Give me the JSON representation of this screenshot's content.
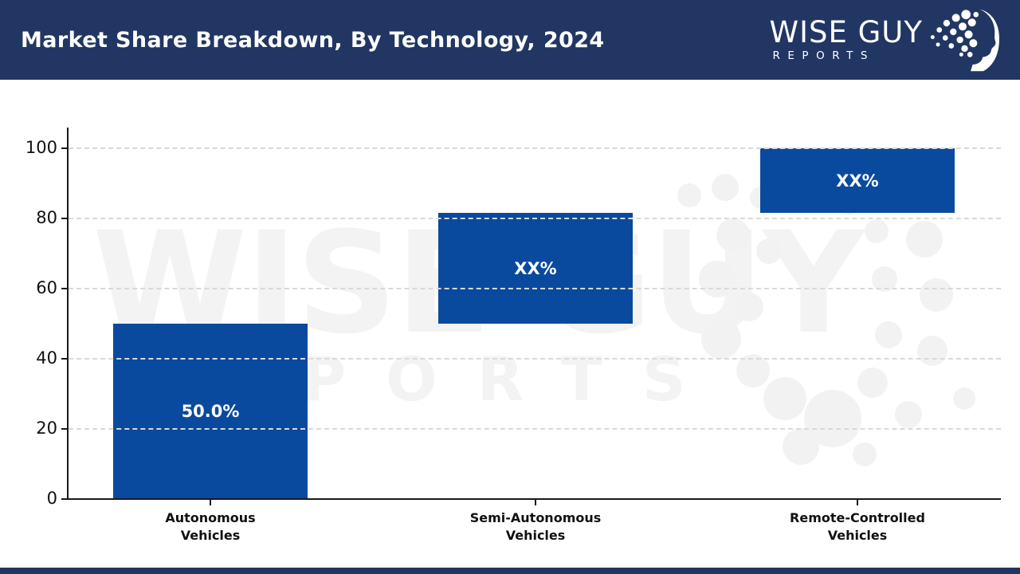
{
  "header": {
    "title": "Market Share Breakdown, By Technology, 2024",
    "logo": {
      "line1": "WISE GUY",
      "line2": "REPORTS"
    },
    "bg_color": "#213663"
  },
  "watermark": {
    "line1": "WISE GUY",
    "line2": "REPORTS"
  },
  "chart_data": {
    "type": "bar",
    "subtype": "floating-waterfall",
    "title": "Market Share Breakdown, By Technology, 2024",
    "categories": [
      "Autonomous\nVehicles",
      "Semi-Autonomous\nVehicles",
      "Remote-Controlled\nVehicles"
    ],
    "bars": [
      {
        "category": "Autonomous Vehicles",
        "start": 0,
        "end": 50,
        "label": "50.0%"
      },
      {
        "category": "Semi-Autonomous Vehicles",
        "start": 50,
        "end": 81.5,
        "label": "XX%"
      },
      {
        "category": "Remote-Controlled Vehicles",
        "start": 81.5,
        "end": 100,
        "label": "XX%"
      }
    ],
    "ylim": [
      0,
      100
    ],
    "yticks": [
      0,
      20,
      40,
      60,
      80,
      100
    ],
    "xlabel": "",
    "ylabel": "",
    "grid": "horizontal-dashed",
    "legend": "none",
    "bar_color": "#0a4a9e",
    "bar_label_color": "#ffffff",
    "axis_color": "#1a1a1a",
    "gridline_color": "#d9d9d9"
  },
  "footer": {
    "bg_color": "#213663"
  }
}
